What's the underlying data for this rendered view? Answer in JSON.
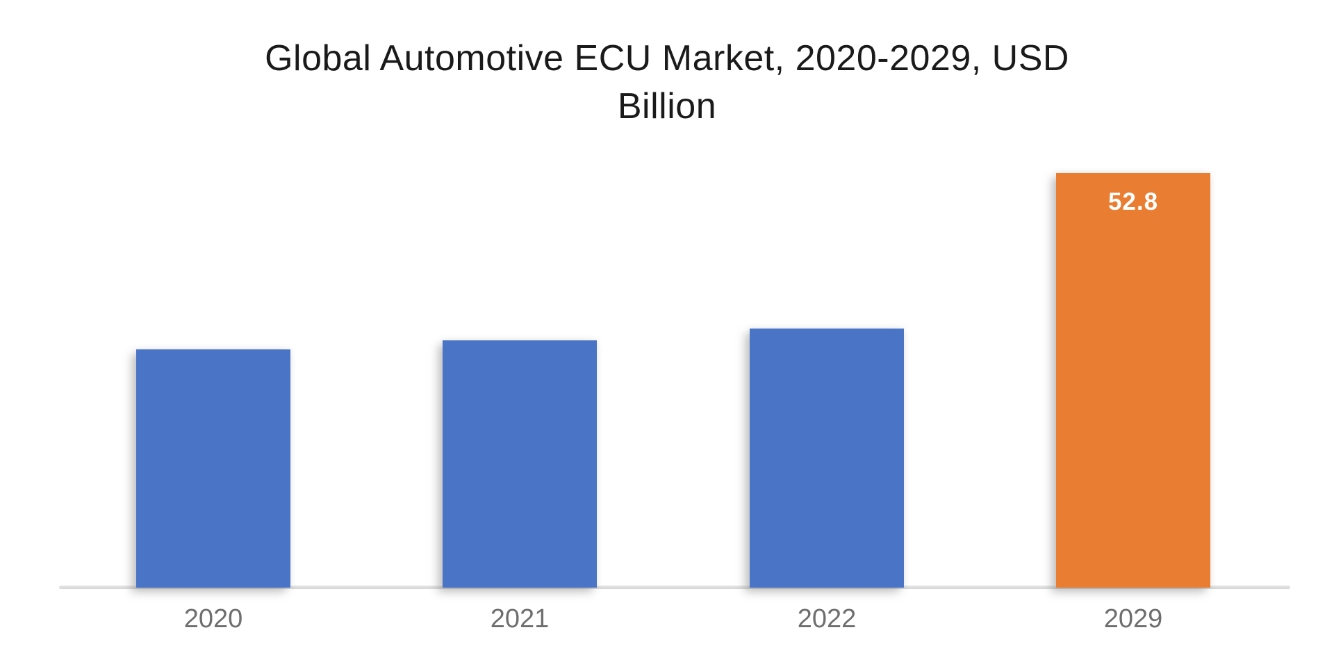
{
  "page": {
    "background_color": "#ffffff"
  },
  "chart_data": {
    "type": "bar",
    "title": "Global Automotive ECU Market, 2020-2029, USD Billion",
    "title_lines": [
      "Global Automotive ECU Market, 2020-2029, USD",
      "Billion"
    ],
    "xlabel": "",
    "ylabel": "",
    "categories": [
      "2020",
      "2021",
      "2022",
      "2029"
    ],
    "values": [
      30.3,
      31.5,
      33.0,
      52.8
    ],
    "data_labels": [
      "",
      "",
      "",
      "52.8"
    ],
    "bar_colors": [
      "#4A75C7",
      "#4A75C7",
      "#4A75C7",
      "#E97D31"
    ],
    "highlight_color": "#E97D31",
    "base_color": "#4A75C7",
    "data_label_color": "#ffffff",
    "axis_label_color": "#6E6E6E",
    "title_color": "#1A1A1A",
    "axis_line_color": "#D9D9D9",
    "ylim": [
      0,
      52.8
    ],
    "grid": "off",
    "legend": "none",
    "y_axis_visible": false,
    "note": "only the 2029 bar shows a data label; other values estimated from bar heights"
  }
}
